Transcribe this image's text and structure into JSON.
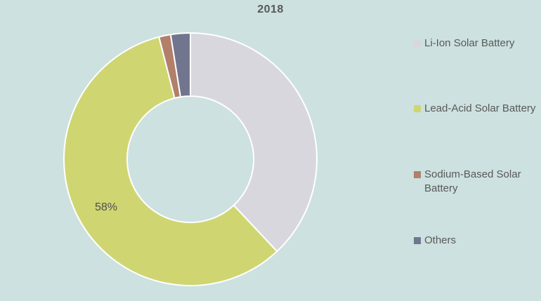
{
  "chart_data": {
    "type": "pie",
    "subtype": "donut",
    "title": "2018",
    "categories": [
      "Li-Ion Solar Battery",
      "Lead-Acid Solar Battery",
      "Sodium-Based Solar Battery",
      "Others"
    ],
    "values": [
      38,
      58,
      1.5,
      2.5
    ],
    "colors": [
      "#d8d7dd",
      "#cfd671",
      "#b17f6a",
      "#72758e"
    ],
    "data_labels": [
      {
        "category": "Lead-Acid Solar Battery",
        "text": "58%"
      }
    ],
    "start_angle_deg": 0,
    "direction": "clockwise",
    "inner_radius_ratio": 0.5,
    "legend_position": "right",
    "background_color": "#cce1e0"
  },
  "legend": {
    "items": [
      {
        "label": "Li-Ion Solar Battery",
        "color": "#d8d7dd"
      },
      {
        "label": "Lead-Acid Solar Battery",
        "color": "#cfd671"
      },
      {
        "label": "Sodium-Based Solar Battery",
        "color": "#b17f6a"
      },
      {
        "label": "Others",
        "color": "#72758e"
      }
    ]
  }
}
